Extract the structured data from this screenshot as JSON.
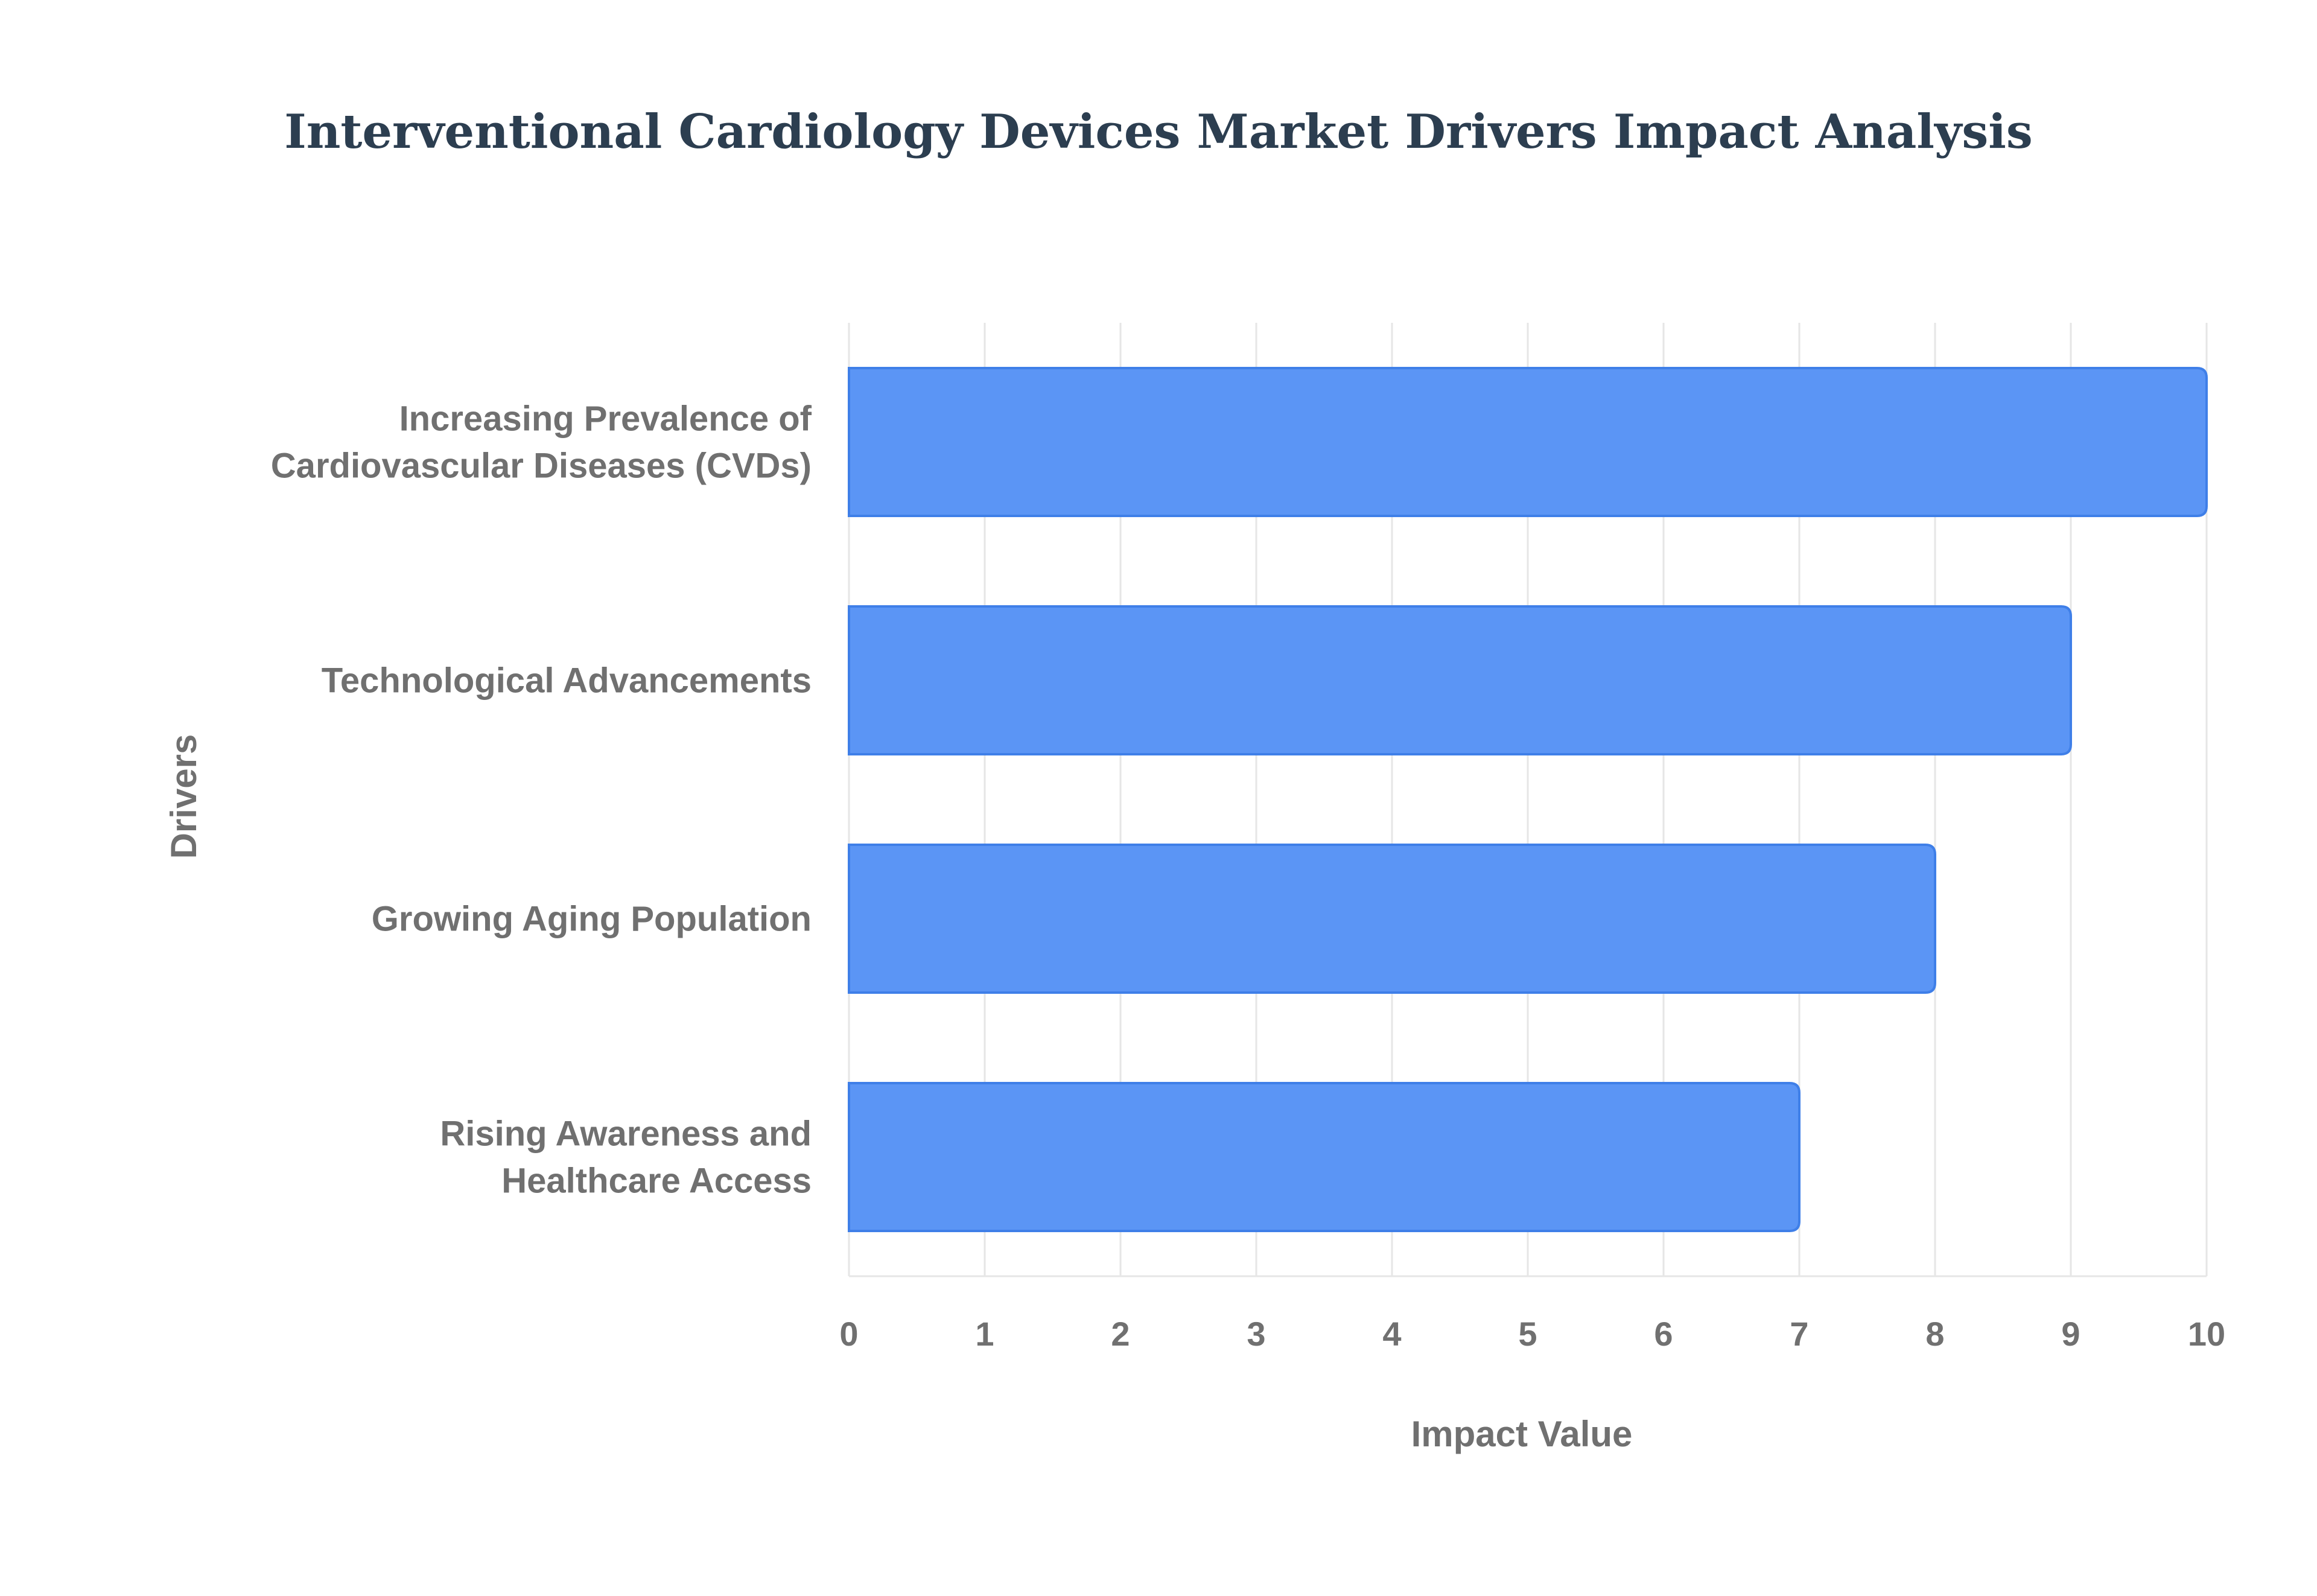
{
  "chart_data": {
    "type": "bar",
    "orientation": "horizontal",
    "title": "Interventional Cardiology Devices Market Drivers Impact Analysis",
    "xlabel": "Impact Value",
    "ylabel": "Drivers",
    "categories": [
      "Increasing Prevalence of Cardiovascular Diseases (CVDs)",
      "Technological Advancements",
      "Growing Aging Population",
      "Rising Awareness and Healthcare Access"
    ],
    "category_label_lines": [
      [
        "Increasing Prevalence of",
        "Cardiovascular Diseases (CVDs)"
      ],
      [
        "Technological Advancements"
      ],
      [
        "Growing Aging Population"
      ],
      [
        "Rising Awareness and",
        "Healthcare Access"
      ]
    ],
    "values": [
      10,
      9,
      8,
      7
    ],
    "xlim": [
      0,
      10
    ],
    "xticks": [
      0,
      1,
      2,
      3,
      4,
      5,
      6,
      7,
      8,
      9,
      10
    ],
    "grid": true,
    "legend": "none",
    "colors": {
      "bar_fill": "#5b95f5",
      "bar_stroke": "#3f7fe8",
      "grid": "#e6e6e6",
      "axis_text": "#707070",
      "title": "#2c3e50"
    }
  }
}
